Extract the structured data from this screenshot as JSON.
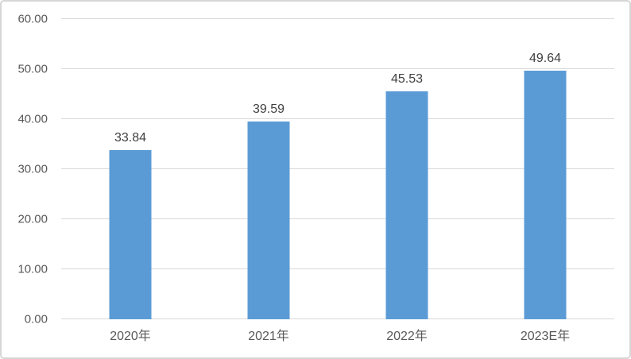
{
  "chart_data": {
    "type": "bar",
    "categories": [
      "2020年",
      "2021年",
      "2022年",
      "2023E年"
    ],
    "values": [
      33.84,
      39.59,
      45.53,
      49.64
    ],
    "data_labels": [
      "33.84",
      "39.59",
      "45.53",
      "49.64"
    ],
    "title": "",
    "xlabel": "",
    "ylabel": "",
    "ylim": [
      0,
      60
    ],
    "y_tick_step": 10,
    "y_tick_labels": [
      "0.00",
      "10.00",
      "20.00",
      "30.00",
      "40.00",
      "50.00",
      "60.00"
    ],
    "grid": true,
    "legend_position": "none",
    "colors": {
      "bar_fill": "#5B9BD5",
      "gridline": "#D9D9D9",
      "axis_text": "#595959",
      "data_label_text": "#404040",
      "frame_border": "#D6D6D6",
      "background": "#FFFFFF"
    }
  }
}
